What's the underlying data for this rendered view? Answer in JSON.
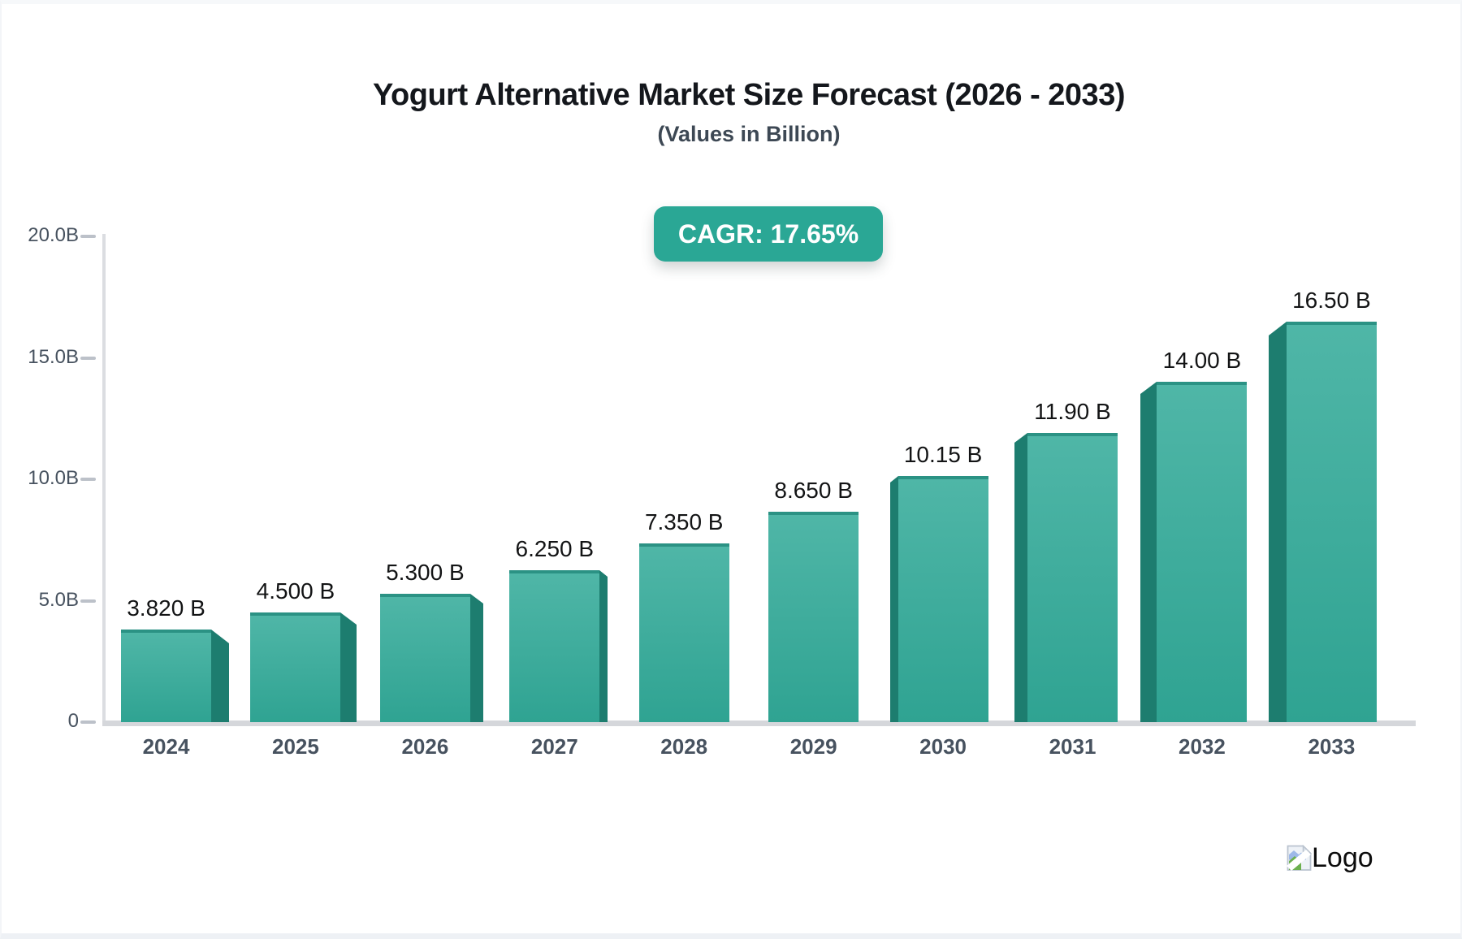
{
  "header": {
    "title": "Yogurt Alternative Market Size Forecast (2026 - 2033)",
    "subtitle": "(Values in Billion)"
  },
  "badge": {
    "label": "CAGR: 17.65%",
    "background": "#2aa795",
    "text_color": "#ffffff"
  },
  "footer": {
    "logo_alt": "Logo"
  },
  "chart_data": {
    "type": "bar",
    "title": "Yogurt Alternative Market Size Forecast (2026 - 2033)",
    "subtitle": "(Values in Billion)",
    "unit": "Billion",
    "categories": [
      "2024",
      "2025",
      "2026",
      "2027",
      "2028",
      "2029",
      "2030",
      "2031",
      "2032",
      "2033"
    ],
    "values": [
      3.82,
      4.5,
      5.3,
      6.25,
      7.35,
      8.65,
      10.15,
      11.9,
      14.0,
      16.5
    ],
    "value_labels": [
      "3.820 B",
      "4.500 B",
      "5.300 B",
      "6.250 B",
      "7.350 B",
      "8.650 B",
      "10.15 B",
      "11.90 B",
      "14.00 B",
      "16.50 B"
    ],
    "cagr": "17.65%",
    "y_axis": {
      "ticks": [
        {
          "label": "20.0B",
          "value": 20
        },
        {
          "label": "15.0B",
          "value": 15
        },
        {
          "label": "10.0B",
          "value": 10
        },
        {
          "label": "5.0B",
          "value": 5
        },
        {
          "label": "0",
          "value": 0
        }
      ],
      "ylim": [
        0,
        20
      ]
    },
    "grid": false,
    "legend": false,
    "style": "3d-extruded-bars, perspective vanishing at chart center",
    "colors": {
      "bar_face_top": "#4fb6a7",
      "bar_face_bottom": "#2fa392",
      "bar_side": "#1d7d6f",
      "bar_top_border": "#2b9284",
      "axis_line": "#d5d7db",
      "tick_text": "#47525f",
      "category_text": "#47525f",
      "value_text": "#131415"
    }
  }
}
